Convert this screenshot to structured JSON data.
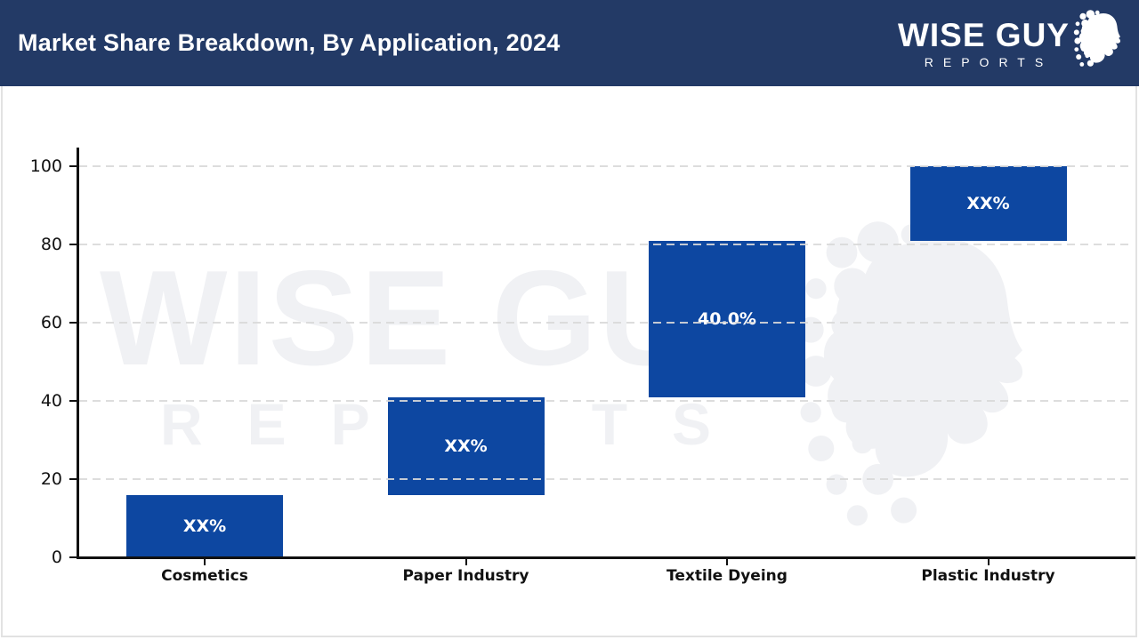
{
  "header": {
    "title": "Market Share Breakdown, By Application, 2024",
    "logo": {
      "name": "WISE GUY",
      "sub": "REPORTS",
      "icon": "dotted-head-profile"
    }
  },
  "watermark": {
    "name": "WISE GUY",
    "sub": "REPORTS",
    "icon": "dotted-head-profile"
  },
  "chart_data": {
    "type": "bar",
    "subtype": "floating-segment-waterfall",
    "title": "Market Share Breakdown, By Application, 2024",
    "categories": [
      "Cosmetics",
      "Paper Industry",
      "Textile Dyeing",
      "Plastic Industry"
    ],
    "bars": [
      {
        "category": "Cosmetics",
        "label": "XX%",
        "start": 0,
        "end": 16
      },
      {
        "category": "Paper Industry",
        "label": "XX%",
        "start": 16,
        "end": 41
      },
      {
        "category": "Textile Dyeing",
        "label": "40.0%",
        "start": 41,
        "end": 81
      },
      {
        "category": "Plastic Industry",
        "label": "XX%",
        "start": 81,
        "end": 100
      }
    ],
    "ylim": [
      0,
      100
    ],
    "yticks": [
      0,
      20,
      40,
      60,
      80,
      100
    ],
    "xlabel": "",
    "ylabel": "",
    "grid": "horizontal-dashed",
    "legend": "none",
    "colors": {
      "bar": "#0d47a1",
      "bar_label": "#ffffff",
      "grid": "#d9d9d9",
      "axis": "#111111",
      "header_bg": "#233a66",
      "watermark": "#f0f1f4"
    }
  }
}
